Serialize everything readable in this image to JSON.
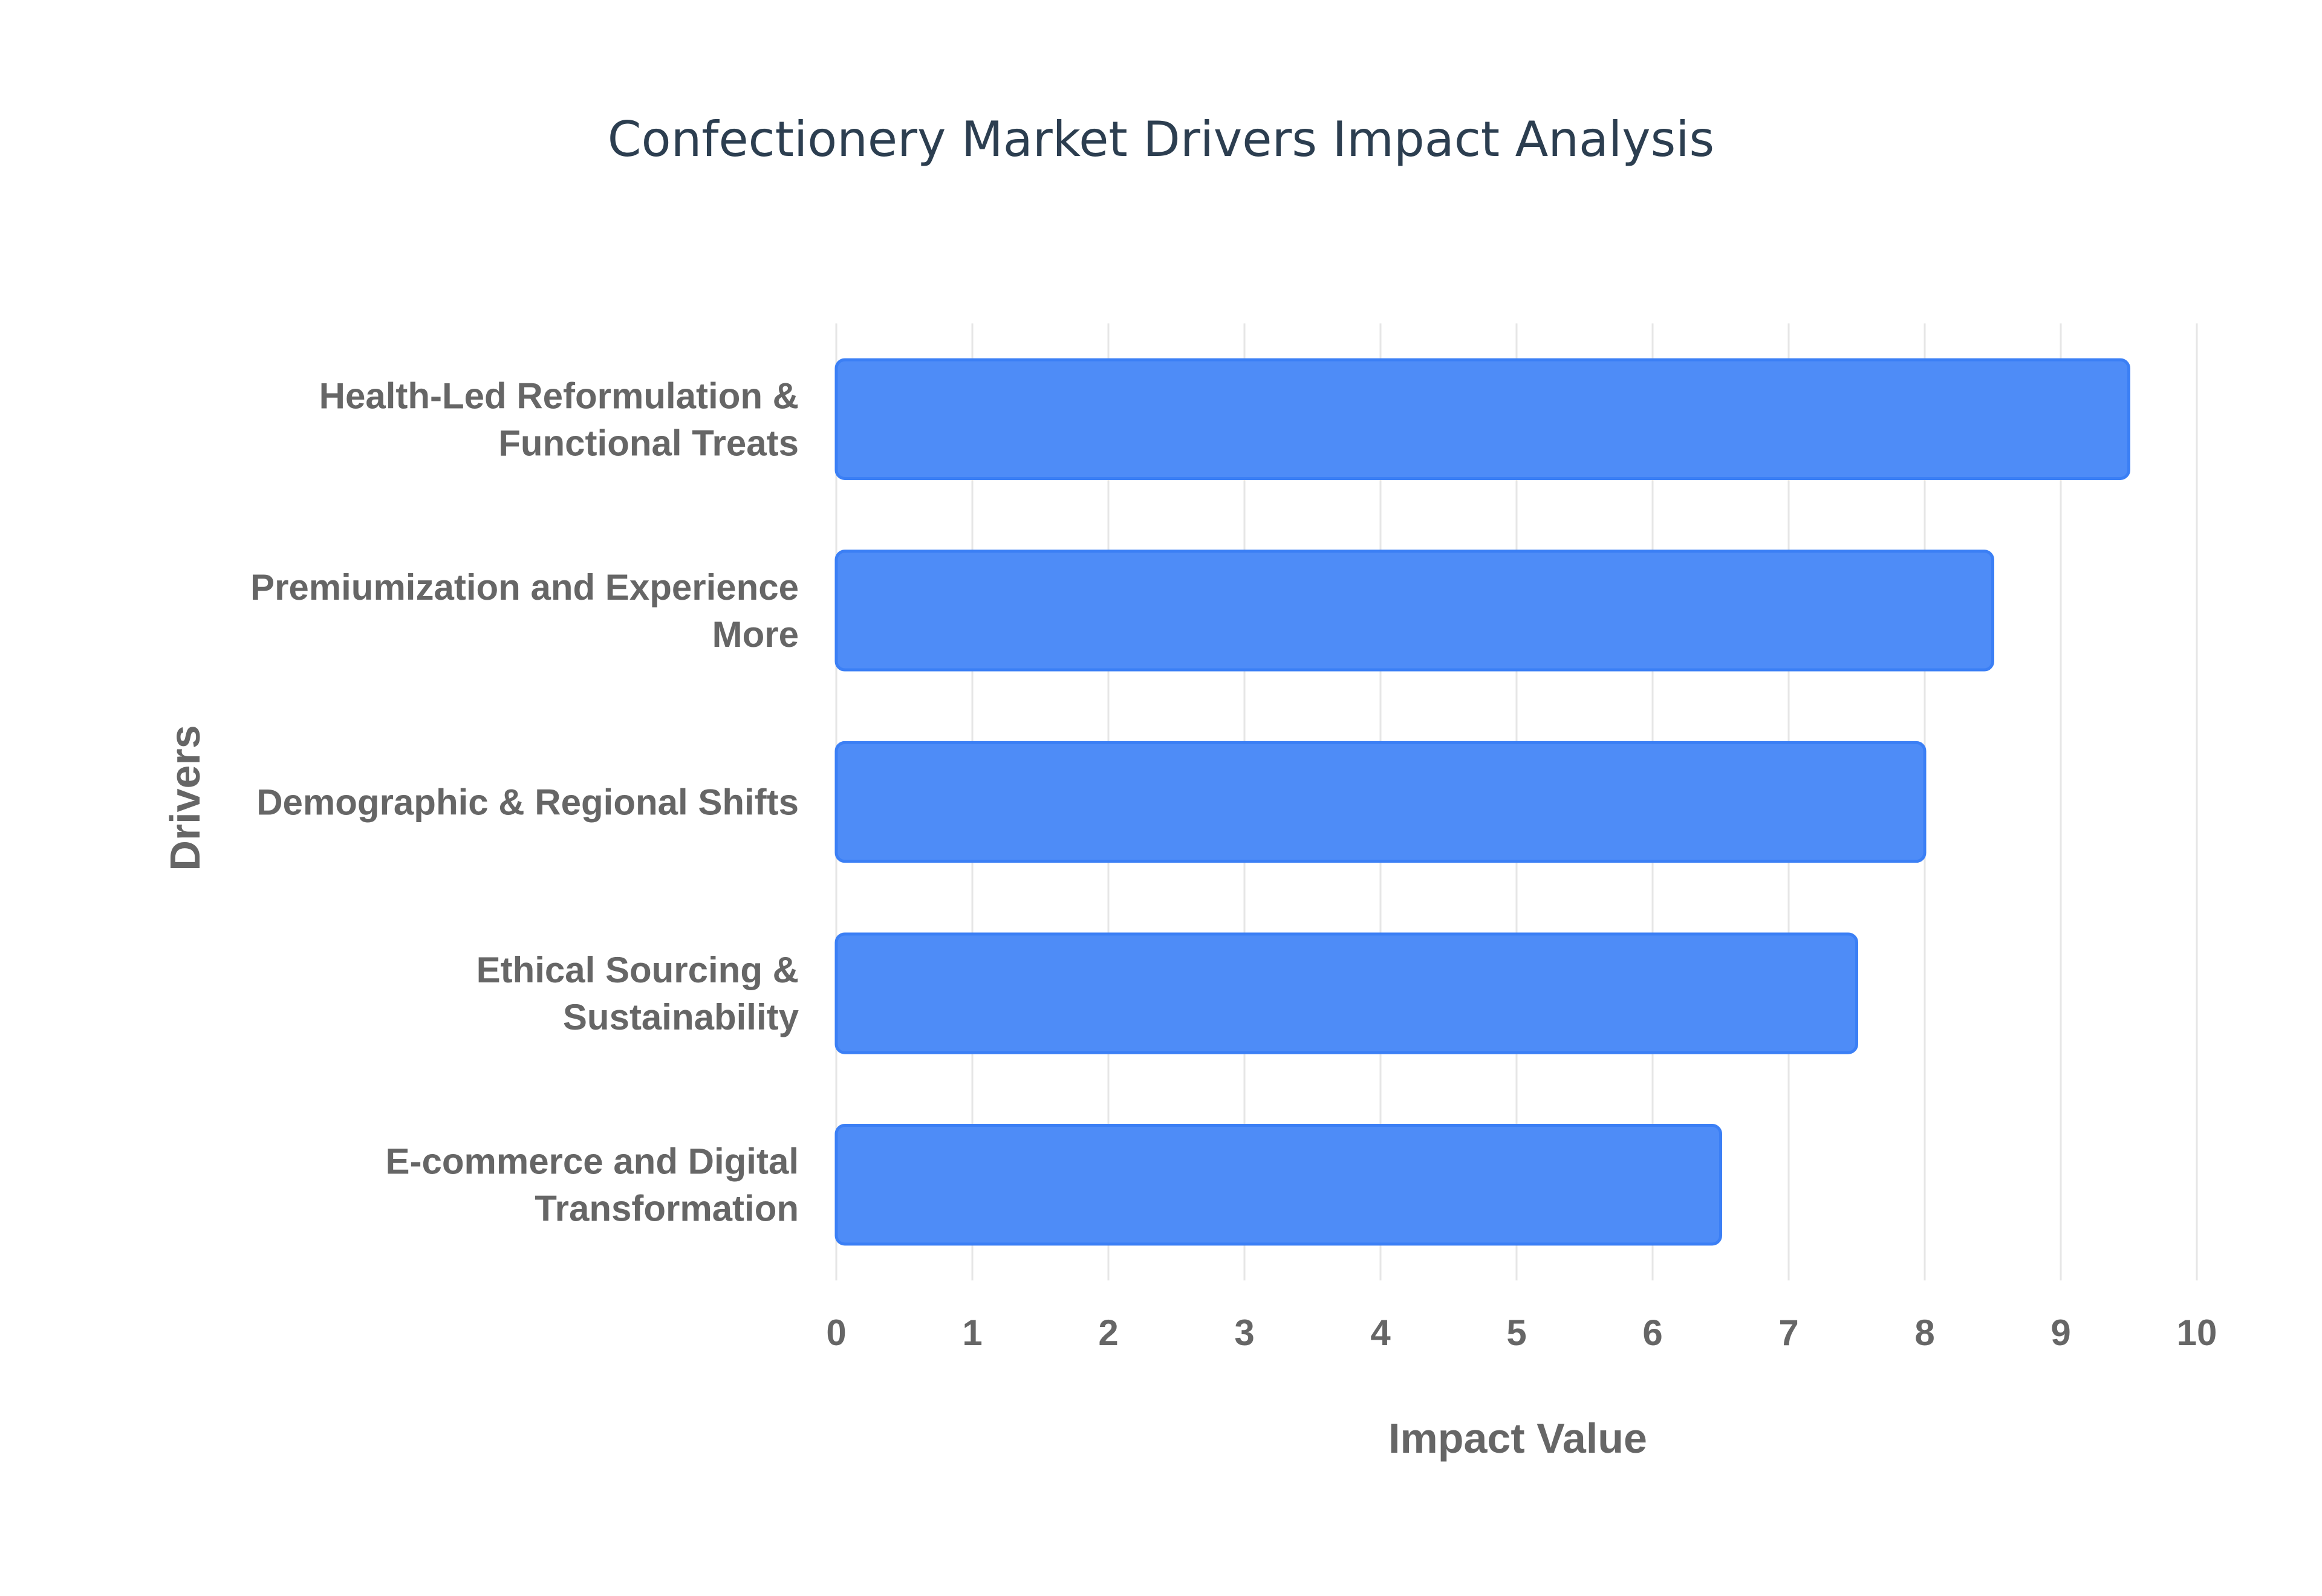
{
  "chart_data": {
    "type": "bar",
    "orientation": "horizontal",
    "title": "Confectionery Market Drivers Impact Analysis",
    "xlabel": "Impact Value",
    "ylabel": "Drivers",
    "xlim": [
      0,
      10
    ],
    "xticks": [
      "0",
      "1",
      "2",
      "3",
      "4",
      "5",
      "6",
      "7",
      "8",
      "9",
      "10"
    ],
    "grid": true,
    "categories": [
      [
        "Health-Led Reformulation &",
        "Functional Treats"
      ],
      [
        "Premiumization and Experience",
        "More"
      ],
      [
        "Demographic & Regional Shifts"
      ],
      [
        "Ethical Sourcing &",
        "Sustainability"
      ],
      [
        "E-commerce and Digital",
        "Transformation"
      ]
    ],
    "values": [
      9.5,
      8.5,
      8.0,
      7.5,
      6.5
    ],
    "colors": {
      "bar_fill": "#4e8cf7",
      "bar_stroke": "#3b7ff5",
      "title": "#2c3e50",
      "label": "#666666",
      "grid": "#e6e6e6"
    }
  }
}
